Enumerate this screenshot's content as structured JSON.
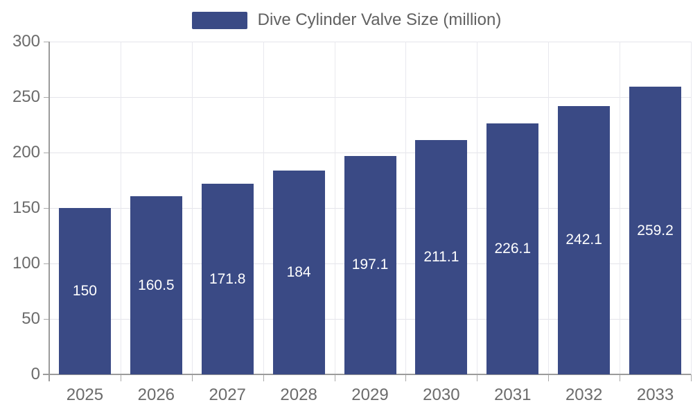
{
  "chart_data": {
    "type": "bar",
    "title": "Dive Cylinder Valve Size (million)",
    "legend_entries": [
      "Dive Cylinder Valve Size (million)"
    ],
    "legend_position": "top-center",
    "categories": [
      "2025",
      "2026",
      "2027",
      "2028",
      "2029",
      "2030",
      "2031",
      "2032",
      "2033"
    ],
    "series": [
      {
        "name": "Dive Cylinder Valve Size (million)",
        "values": [
          150,
          160.5,
          171.8,
          184,
          197.1,
          211.1,
          226.1,
          242.1,
          259.2
        ]
      }
    ],
    "value_labels": [
      "150",
      "160.5",
      "171.8",
      "184",
      "197.1",
      "211.1",
      "226.1",
      "242.1",
      "259.2"
    ],
    "value_label_style": "inside-center-white",
    "xlabel": "",
    "ylabel": "",
    "ylim": [
      0,
      300
    ],
    "yticks": [
      0,
      50,
      100,
      150,
      200,
      250,
      300
    ],
    "grid": "horizontal and vertical light gray gridlines",
    "colors": {
      "bar": "#3a4a85",
      "axis_line": "#9b9b9b",
      "axis_label": "#6b6b6b",
      "gridline": "#e4e4ea",
      "value_label": "#ffffff",
      "legend_text": "#616161",
      "background": "#ffffff"
    }
  }
}
